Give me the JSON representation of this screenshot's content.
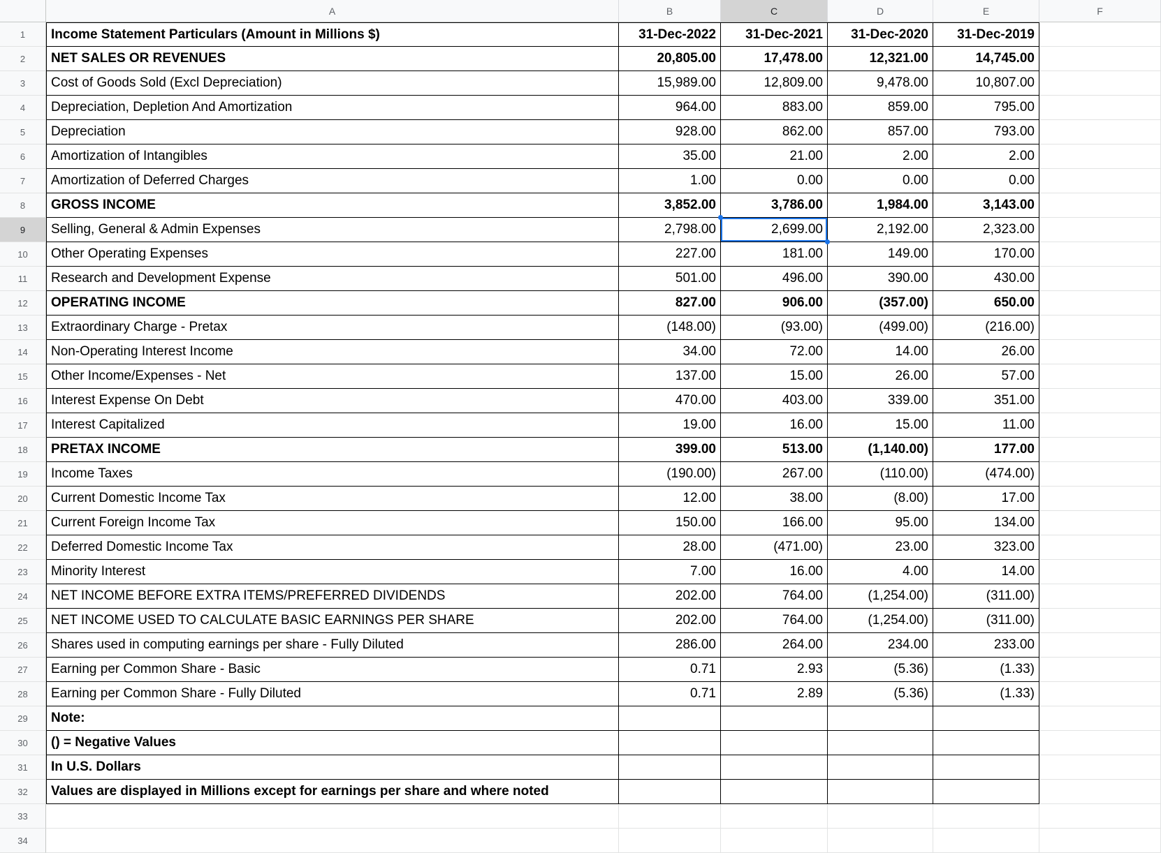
{
  "spreadsheet": {
    "column_headers": [
      "A",
      "B",
      "C",
      "D",
      "E",
      "F"
    ],
    "selection": {
      "cell": "C9",
      "row": 9,
      "col": "C"
    },
    "accent_color": "#1a73e8",
    "rows": [
      {
        "n": 1,
        "bold": true,
        "label": "Income Statement Particulars (Amount in Millions $)",
        "values": [
          "31-Dec-2022",
          "31-Dec-2021",
          "31-Dec-2020",
          "31-Dec-2019"
        ]
      },
      {
        "n": 2,
        "bold": true,
        "label": "NET SALES OR REVENUES",
        "values": [
          "20,805.00",
          "17,478.00",
          "12,321.00",
          "14,745.00"
        ]
      },
      {
        "n": 3,
        "bold": false,
        "label": "Cost of Goods Sold (Excl Depreciation)",
        "values": [
          "15,989.00",
          "12,809.00",
          "9,478.00",
          "10,807.00"
        ]
      },
      {
        "n": 4,
        "bold": false,
        "label": "Depreciation, Depletion And Amortization",
        "values": [
          "964.00",
          "883.00",
          "859.00",
          "795.00"
        ]
      },
      {
        "n": 5,
        "bold": false,
        "label": "Depreciation",
        "values": [
          "928.00",
          "862.00",
          "857.00",
          "793.00"
        ]
      },
      {
        "n": 6,
        "bold": false,
        "label": "Amortization of Intangibles",
        "values": [
          "35.00",
          "21.00",
          "2.00",
          "2.00"
        ]
      },
      {
        "n": 7,
        "bold": false,
        "label": "Amortization of Deferred Charges",
        "values": [
          "1.00",
          "0.00",
          "0.00",
          "0.00"
        ]
      },
      {
        "n": 8,
        "bold": true,
        "label": "GROSS INCOME",
        "values": [
          "3,852.00",
          "3,786.00",
          "1,984.00",
          "3,143.00"
        ]
      },
      {
        "n": 9,
        "bold": false,
        "label": "Selling, General & Admin Expenses",
        "values": [
          "2,798.00",
          "2,699.00",
          "2,192.00",
          "2,323.00"
        ]
      },
      {
        "n": 10,
        "bold": false,
        "label": "Other Operating Expenses",
        "values": [
          "227.00",
          "181.00",
          "149.00",
          "170.00"
        ]
      },
      {
        "n": 11,
        "bold": false,
        "label": "Research and Development Expense",
        "values": [
          "501.00",
          "496.00",
          "390.00",
          "430.00"
        ]
      },
      {
        "n": 12,
        "bold": true,
        "label": "OPERATING INCOME",
        "values": [
          "827.00",
          "906.00",
          "(357.00)",
          "650.00"
        ]
      },
      {
        "n": 13,
        "bold": false,
        "label": "Extraordinary Charge - Pretax",
        "values": [
          "(148.00)",
          "(93.00)",
          "(499.00)",
          "(216.00)"
        ]
      },
      {
        "n": 14,
        "bold": false,
        "label": "Non-Operating Interest Income",
        "values": [
          "34.00",
          "72.00",
          "14.00",
          "26.00"
        ]
      },
      {
        "n": 15,
        "bold": false,
        "label": "Other Income/Expenses - Net",
        "values": [
          "137.00",
          "15.00",
          "26.00",
          "57.00"
        ]
      },
      {
        "n": 16,
        "bold": false,
        "label": "Interest Expense On Debt",
        "values": [
          "470.00",
          "403.00",
          "339.00",
          "351.00"
        ]
      },
      {
        "n": 17,
        "bold": false,
        "label": "Interest Capitalized",
        "values": [
          "19.00",
          "16.00",
          "15.00",
          "11.00"
        ]
      },
      {
        "n": 18,
        "bold": true,
        "label": "PRETAX INCOME",
        "values": [
          "399.00",
          "513.00",
          "(1,140.00)",
          "177.00"
        ]
      },
      {
        "n": 19,
        "bold": false,
        "label": "Income Taxes",
        "values": [
          "(190.00)",
          "267.00",
          "(110.00)",
          "(474.00)"
        ]
      },
      {
        "n": 20,
        "bold": false,
        "label": "Current Domestic Income Tax",
        "values": [
          "12.00",
          "38.00",
          "(8.00)",
          "17.00"
        ]
      },
      {
        "n": 21,
        "bold": false,
        "label": "Current Foreign Income Tax",
        "values": [
          "150.00",
          "166.00",
          "95.00",
          "134.00"
        ]
      },
      {
        "n": 22,
        "bold": false,
        "label": "Deferred Domestic Income Tax",
        "values": [
          "28.00",
          "(471.00)",
          "23.00",
          "323.00"
        ]
      },
      {
        "n": 23,
        "bold": false,
        "label": "Minority Interest",
        "values": [
          "7.00",
          "16.00",
          "4.00",
          "14.00"
        ]
      },
      {
        "n": 24,
        "bold": false,
        "label": "NET INCOME BEFORE EXTRA ITEMS/PREFERRED DIVIDENDS",
        "values": [
          "202.00",
          "764.00",
          "(1,254.00)",
          "(311.00)"
        ]
      },
      {
        "n": 25,
        "bold": false,
        "label": "NET INCOME USED TO CALCULATE BASIC EARNINGS PER SHARE",
        "values": [
          "202.00",
          "764.00",
          "(1,254.00)",
          "(311.00)"
        ]
      },
      {
        "n": 26,
        "bold": false,
        "label": "Shares used in computing earnings per share - Fully Diluted",
        "values": [
          "286.00",
          "264.00",
          "234.00",
          "233.00"
        ]
      },
      {
        "n": 27,
        "bold": false,
        "label": "Earning per Common Share - Basic",
        "values": [
          "0.71",
          "2.93",
          "(5.36)",
          "(1.33)"
        ]
      },
      {
        "n": 28,
        "bold": false,
        "label": "Earning per Common Share - Fully Diluted",
        "values": [
          "0.71",
          "2.89",
          "(5.36)",
          "(1.33)"
        ]
      },
      {
        "n": 29,
        "bold": true,
        "label": "Note:",
        "values": [
          "",
          "",
          "",
          ""
        ]
      },
      {
        "n": 30,
        "bold": true,
        "label": "() = Negative Values",
        "values": [
          "",
          "",
          "",
          ""
        ]
      },
      {
        "n": 31,
        "bold": true,
        "label": "In U.S. Dollars",
        "values": [
          "",
          "",
          "",
          ""
        ]
      },
      {
        "n": 32,
        "bold": true,
        "label": "Values are displayed in Millions except for earnings per share and where noted",
        "values": [
          "",
          "",
          "",
          ""
        ]
      },
      {
        "n": 33,
        "bold": false,
        "label": "",
        "values": [
          "",
          "",
          "",
          ""
        ]
      },
      {
        "n": 34,
        "bold": false,
        "label": "",
        "values": [
          "",
          "",
          "",
          ""
        ]
      }
    ]
  }
}
